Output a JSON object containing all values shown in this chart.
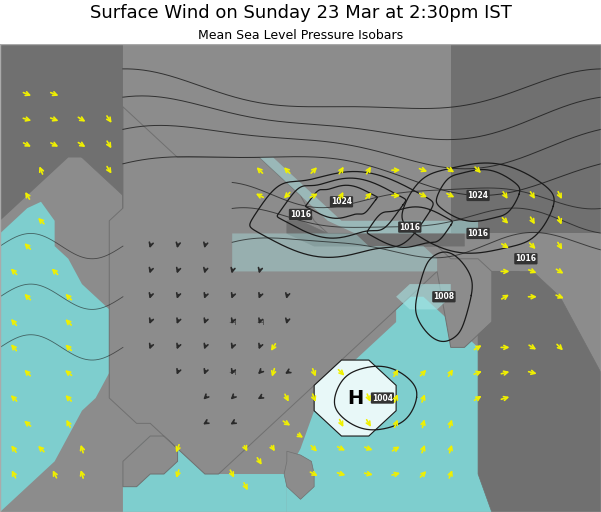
{
  "title": "Surface Wind on Sunday 23 Mar at 2:30pm IST",
  "subtitle": "Mean Sea Level Pressure Isobars",
  "title_fontsize": 13,
  "subtitle_fontsize": 9,
  "bg_color": "#ffffff",
  "ocean_color": "#7ecece",
  "ocean_light": "#a8e4e4",
  "land_color": "#8c8c8c",
  "land_dark": "#707070",
  "land_light": "#a0a0a0",
  "isobar_color": "#1a1a1a",
  "yellow": "#f0f000",
  "dark_arrow": "#2a2a2a",
  "figsize": [
    6.01,
    5.12
  ],
  "dpi": 100
}
